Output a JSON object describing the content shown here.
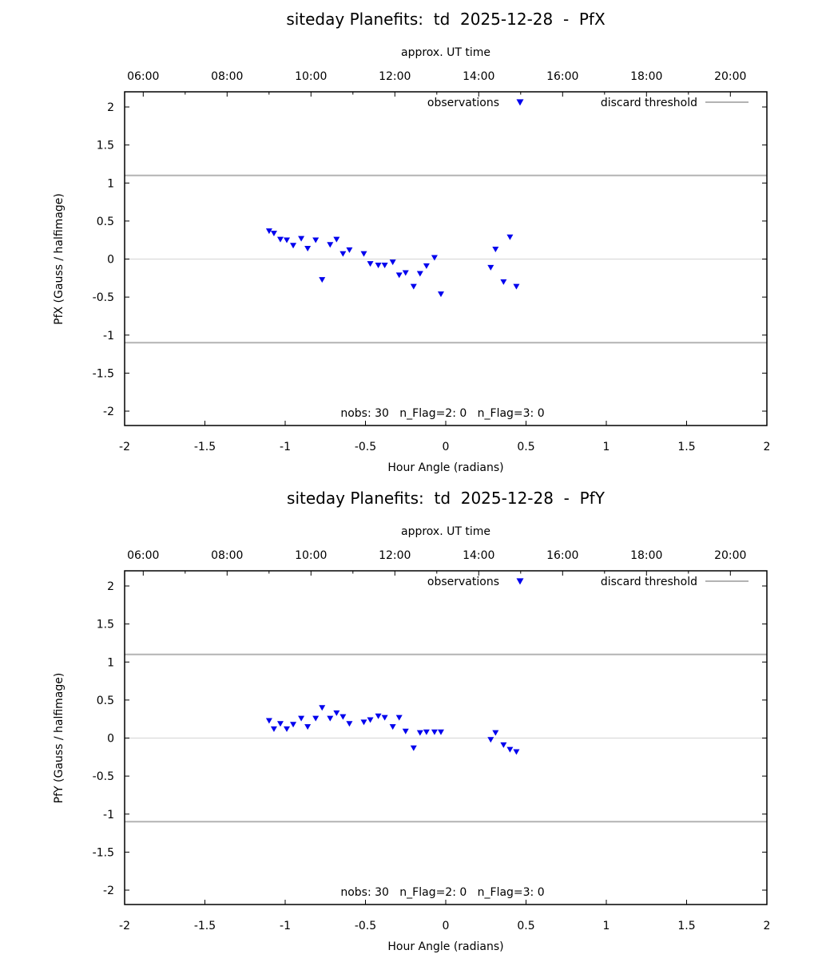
{
  "colors": {
    "observations": "#0000ee",
    "threshold": "#b3b3b3",
    "zero_line": "#d4d4d4",
    "axis": "#000000",
    "background": "#ffffff"
  },
  "chart_data": [
    {
      "type": "scatter",
      "title": "siteday Planefits:  td  2025-12-28  -  PfX",
      "x2label": "approx. UT time",
      "xlabel": "Hour Angle (radians)",
      "ylabel": "PfX (Gauss / halfimage)",
      "xlim": [
        -2,
        2
      ],
      "ylim": [
        -2.2,
        2.2
      ],
      "grid": false,
      "legend_position": "top-right-inside",
      "xticks": [
        "-2",
        "-1.5",
        "-1",
        "-0.5",
        "0",
        "0.5",
        "1",
        "1.5",
        "2"
      ],
      "xtick_values": [
        -2,
        -1.5,
        -1,
        -0.5,
        0,
        0.5,
        1,
        1.5,
        2
      ],
      "yticks": [
        "2",
        "1.5",
        "1",
        "0.5",
        "0",
        "-0.5",
        "-1",
        "-1.5",
        "-2"
      ],
      "ytick_values": [
        2,
        1.5,
        1,
        0.5,
        0,
        -0.5,
        -1,
        -1.5,
        -2
      ],
      "x2ticks": [
        "06:00",
        "08:00",
        "10:00",
        "12:00",
        "14:00",
        "16:00",
        "18:00",
        "20:00"
      ],
      "x2tick_hours": [
        6,
        8,
        10,
        12,
        14,
        16,
        18,
        20
      ],
      "x2minor_hours": [
        7,
        9,
        11,
        13,
        15,
        17,
        19
      ],
      "zero_line_y": 0,
      "annotation": "nobs: 30   n_Flag=2: 0   n_Flag=3: 0",
      "series": [
        {
          "name": "observations",
          "marker": "triangle-down",
          "color": "#0000ee",
          "x": [
            -1.1,
            -1.07,
            -1.03,
            -0.99,
            -0.95,
            -0.9,
            -0.86,
            -0.81,
            -0.77,
            -0.72,
            -0.68,
            -0.64,
            -0.6,
            -0.51,
            -0.47,
            -0.42,
            -0.38,
            -0.33,
            -0.29,
            -0.25,
            -0.2,
            -0.16,
            -0.12,
            -0.07,
            -0.03,
            0.28,
            0.31,
            0.36,
            0.4,
            0.44
          ],
          "y": [
            0.37,
            0.34,
            0.26,
            0.25,
            0.18,
            0.27,
            0.14,
            0.25,
            -0.27,
            0.19,
            0.26,
            0.07,
            0.12,
            0.07,
            -0.06,
            -0.08,
            -0.08,
            -0.04,
            -0.21,
            -0.18,
            -0.36,
            -0.19,
            -0.09,
            0.02,
            -0.46,
            -0.11,
            0.13,
            -0.3,
            0.29,
            -0.36
          ]
        },
        {
          "name": "discard threshold",
          "type": "hlines",
          "color": "#b3b3b3",
          "y_values": [
            1.1,
            -1.1
          ]
        }
      ]
    },
    {
      "type": "scatter",
      "title": "siteday Planefits:  td  2025-12-28  -  PfY",
      "x2label": "approx. UT time",
      "xlabel": "Hour Angle (radians)",
      "ylabel": "PfY (Gauss / halfimage)",
      "xlim": [
        -2,
        2
      ],
      "ylim": [
        -2.2,
        2.2
      ],
      "grid": false,
      "legend_position": "top-right-inside",
      "xticks": [
        "-2",
        "-1.5",
        "-1",
        "-0.5",
        "0",
        "0.5",
        "1",
        "1.5",
        "2"
      ],
      "xtick_values": [
        -2,
        -1.5,
        -1,
        -0.5,
        0,
        0.5,
        1,
        1.5,
        2
      ],
      "yticks": [
        "2",
        "1.5",
        "1",
        "0.5",
        "0",
        "-0.5",
        "-1",
        "-1.5",
        "-2"
      ],
      "ytick_values": [
        2,
        1.5,
        1,
        0.5,
        0,
        -0.5,
        -1,
        -1.5,
        -2
      ],
      "x2ticks": [
        "06:00",
        "08:00",
        "10:00",
        "12:00",
        "14:00",
        "16:00",
        "18:00",
        "20:00"
      ],
      "x2tick_hours": [
        6,
        8,
        10,
        12,
        14,
        16,
        18,
        20
      ],
      "x2minor_hours": [
        7,
        9,
        11,
        13,
        15,
        17,
        19
      ],
      "zero_line_y": 0,
      "annotation": "nobs: 30   n_Flag=2: 0   n_Flag=3: 0",
      "series": [
        {
          "name": "observations",
          "marker": "triangle-down",
          "color": "#0000ee",
          "x": [
            -1.1,
            -1.07,
            -1.03,
            -0.99,
            -0.95,
            -0.9,
            -0.86,
            -0.81,
            -0.77,
            -0.72,
            -0.68,
            -0.64,
            -0.6,
            -0.51,
            -0.47,
            -0.42,
            -0.38,
            -0.33,
            -0.29,
            -0.25,
            -0.2,
            -0.16,
            -0.12,
            -0.07,
            -0.03,
            0.28,
            0.31,
            0.36,
            0.4,
            0.44
          ],
          "y": [
            0.23,
            0.12,
            0.19,
            0.12,
            0.18,
            0.26,
            0.15,
            0.26,
            0.4,
            0.26,
            0.33,
            0.28,
            0.19,
            0.21,
            0.24,
            0.29,
            0.27,
            0.15,
            0.27,
            0.09,
            -0.13,
            0.07,
            0.08,
            0.08,
            0.08,
            -0.02,
            0.07,
            -0.09,
            -0.15,
            -0.18
          ]
        },
        {
          "name": "discard threshold",
          "type": "hlines",
          "color": "#b3b3b3",
          "y_values": [
            1.1,
            -1.1
          ]
        }
      ]
    }
  ]
}
